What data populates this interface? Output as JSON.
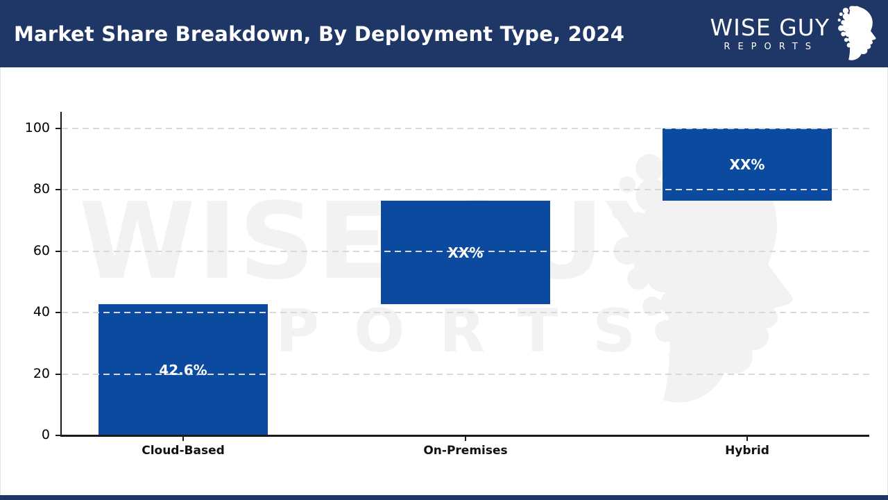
{
  "header": {
    "title": "Market Share Breakdown, By Deployment Type, 2024",
    "logo": {
      "line1": "WISE GUY",
      "line2": "REPORTS"
    }
  },
  "watermark": {
    "line1": "WISE GUY",
    "line2": "REPORTS"
  },
  "chart_data": {
    "type": "bar",
    "variant": "stacked-waterfall",
    "title": "Market Share Breakdown, By Deployment Type, 2024",
    "categories": [
      "Cloud-Based",
      "On-Premises",
      "Hybrid"
    ],
    "bars": [
      {
        "category": "Cloud-Based",
        "start": 0,
        "end": 42.6,
        "label": "42.6%"
      },
      {
        "category": "On-Premises",
        "start": 42.6,
        "end": 76.3,
        "label": "XX%"
      },
      {
        "category": "Hybrid",
        "start": 76.3,
        "end": 100,
        "label": "XX%"
      }
    ],
    "yticks": [
      0,
      20,
      40,
      60,
      80,
      100
    ],
    "ylim": [
      0,
      105
    ],
    "xlabel": "",
    "ylabel": "",
    "legend": "none",
    "grid": {
      "axis": "y",
      "style": "dashed",
      "color": "#d9d9d9"
    },
    "colors": {
      "bar": "#0b4a9f",
      "bar_label": "#ffffff",
      "axis": "#1a1a1a",
      "tick_label": "#000000",
      "header_bg": "#1f3766",
      "footer_bg": "#1f3766",
      "watermark": "#f2f2f2"
    }
  }
}
